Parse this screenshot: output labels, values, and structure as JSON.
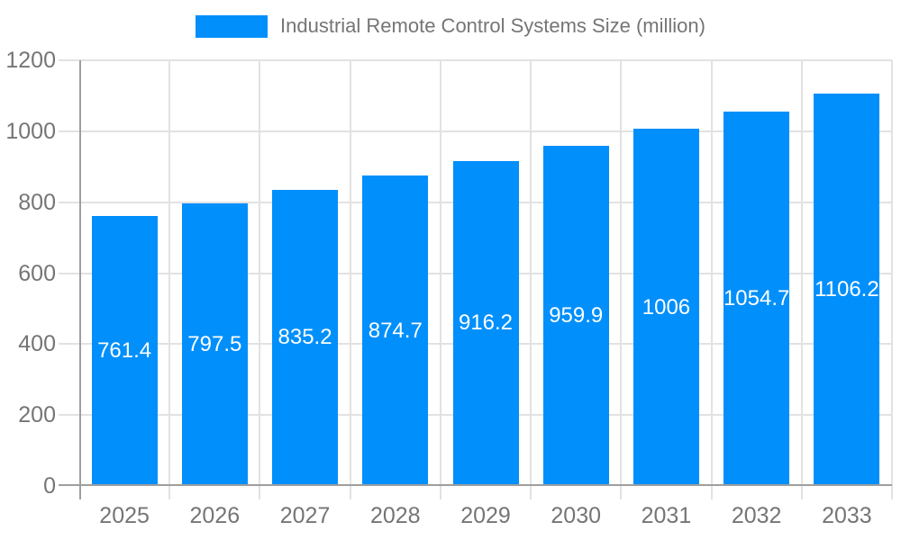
{
  "legend": {
    "label": "Industrial Remote Control Systems Size (million)"
  },
  "chart_data": {
    "type": "bar",
    "title": "Industrial Remote Control Systems Size (million)",
    "categories": [
      "2025",
      "2026",
      "2027",
      "2028",
      "2029",
      "2030",
      "2031",
      "2032",
      "2033"
    ],
    "values": [
      761.4,
      797.5,
      835.2,
      874.7,
      916.2,
      959.9,
      1006,
      1054.7,
      1106.2
    ],
    "value_labels": [
      "761.4",
      "797.5",
      "835.2",
      "874.7",
      "916.2",
      "959.9",
      "1006",
      "1054.7",
      "1106.2"
    ],
    "xlabel": "",
    "ylabel": "",
    "ylim": [
      0,
      1200
    ],
    "yticks": [
      0,
      200,
      400,
      600,
      800,
      1000,
      1200
    ],
    "grid": true,
    "legend_position": "top",
    "colors": {
      "bar": "#008FFB",
      "value_label": "#ffffff",
      "axis_line": "#9e9e9e",
      "grid_line": "#e2e2e2",
      "tick_label": "#757575",
      "legend_label": "#757575",
      "background": "#ffffff"
    }
  }
}
